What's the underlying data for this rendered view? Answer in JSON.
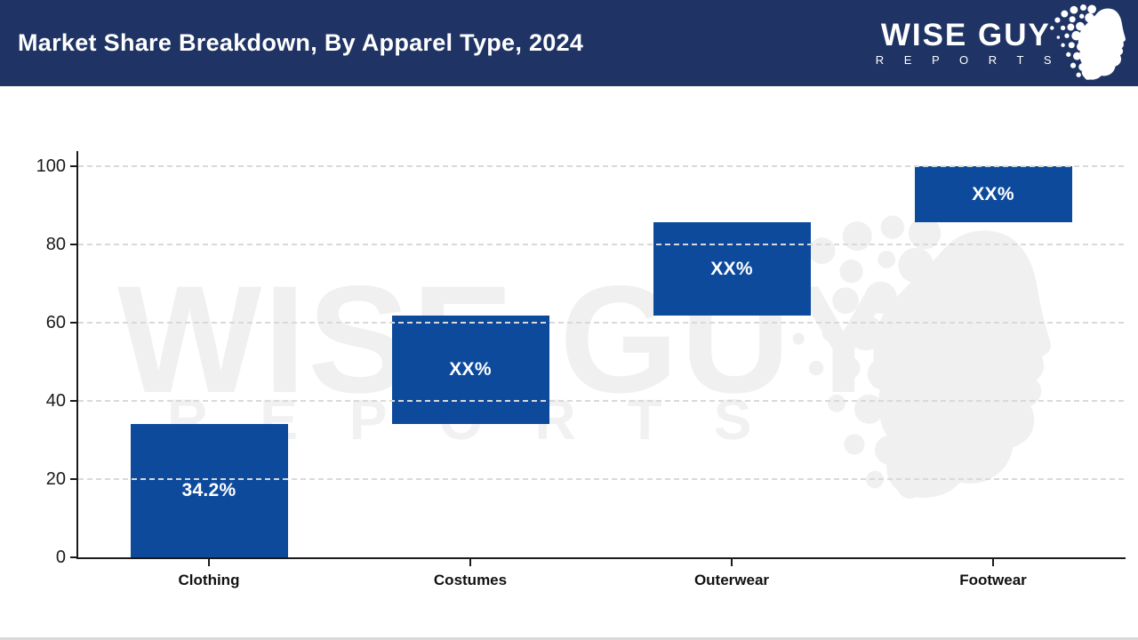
{
  "header": {
    "title": "Market Share Breakdown, By Apparel Type, 2024",
    "background_color": "#1f3464"
  },
  "logo": {
    "name": "WISE GUY",
    "subtitle": "R E P O R T S",
    "icon": "dotted-head-profile-icon",
    "color": "#ffffff"
  },
  "watermark": {
    "line1": "WISE GUY",
    "line2": "REPORTS",
    "icon": "dotted-head-profile-watermark",
    "color": "#f0f0f1"
  },
  "chart_data": {
    "type": "bar",
    "subtype": "floating-waterfall",
    "title": "Market Share Breakdown, By Apparel Type, 2024",
    "categories": [
      "Clothing",
      "Costumes",
      "Outerwear",
      "Footwear"
    ],
    "series": [
      {
        "name": "Market Share (%)",
        "ranges": [
          [
            0,
            34.2
          ],
          [
            34.2,
            61.8
          ],
          [
            61.8,
            85.6
          ],
          [
            85.6,
            100
          ]
        ]
      }
    ],
    "bar_labels": [
      "34.2%",
      "XX%",
      "XX%",
      "XX%"
    ],
    "xlabel": "",
    "ylabel": "",
    "ylim": [
      0,
      100
    ],
    "yticks": [
      0,
      20,
      40,
      60,
      80,
      100
    ],
    "grid": "horizontal-dashed-over-bars",
    "legend": "none",
    "bar_color": "#0d4a9c",
    "bar_label_color": "#ffffff",
    "axis_color": "#1a1a1a",
    "gridline_color": "#d9d9d9"
  }
}
